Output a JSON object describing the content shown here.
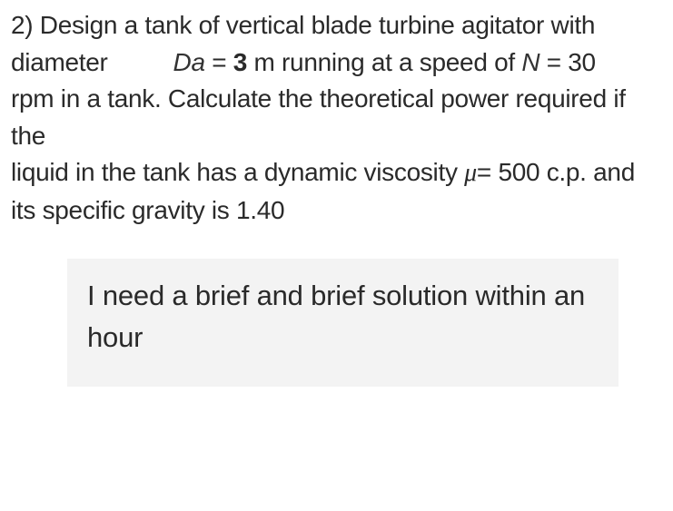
{
  "problem": {
    "line1_prefix": "2) Design a tank of vertical blade turbine agitator with",
    "line2_prefix": "diameter",
    "da_label": "Da",
    "equals1": " = ",
    "da_value": "3",
    "line2_suffix": " m running at a speed of ",
    "n_label": "N",
    "equals2": " = ",
    "n_value": "30",
    "line3": "rpm in a tank. Calculate the theoretical power required if the",
    "line4_prefix": "liquid in the tank has  a dynamic viscosity ",
    "mu": "μ",
    "mu_equals": "= ",
    "mu_value": "500 c.p.",
    "line4_suffix": " and",
    "line5": "its  specific  gravity is 1.40"
  },
  "note": {
    "text": "I need a brief and brief solution within an hour"
  },
  "colors": {
    "text": "#2a2a2a",
    "background": "#ffffff",
    "note_background": "#f3f3f3"
  }
}
